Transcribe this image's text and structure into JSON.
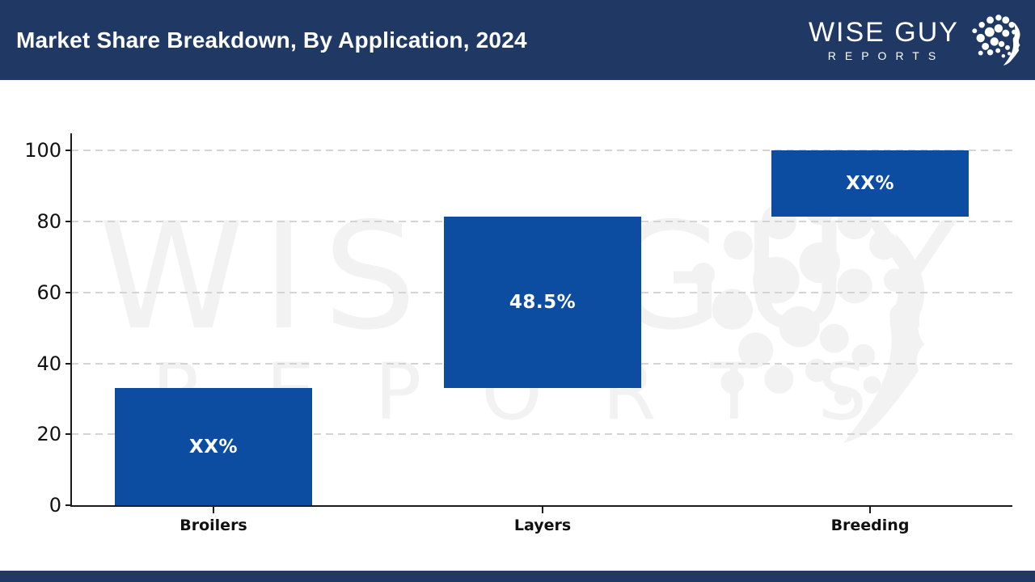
{
  "header": {
    "title": "Market Share Breakdown, By Application, 2024",
    "logo": {
      "line1": "WISE GUY",
      "line2": "REPORTS"
    }
  },
  "watermark": {
    "line1": "WISE GUY",
    "line2": "REPORTS"
  },
  "chart_data": {
    "type": "bar",
    "subtype": "floating-waterfall",
    "title": "Market Share Breakdown, By Application, 2024",
    "categories": [
      "Broilers",
      "Layers",
      "Breeding"
    ],
    "segments": [
      {
        "category": "Broilers",
        "start": 0,
        "end": 33,
        "label": "XX%"
      },
      {
        "category": "Layers",
        "start": 33,
        "end": 81.5,
        "label": "48.5%"
      },
      {
        "category": "Breeding",
        "start": 81.5,
        "end": 100,
        "label": "XX%"
      }
    ],
    "y_ticks": [
      0,
      20,
      40,
      60,
      80,
      100
    ],
    "ylim": [
      0,
      100
    ],
    "xlabel": "",
    "ylabel": "",
    "grid": "horizontal-dashed",
    "legend": "none"
  },
  "colors": {
    "header_bg": "#1f3864",
    "footer_bg": "#1f3864",
    "bar": "#0c4da2",
    "bar_label": "#ffffff",
    "grid": "#d4d4d4",
    "axis": "#1a1a1a",
    "tick_text": "#111111",
    "watermark": "#f2f2f2"
  }
}
